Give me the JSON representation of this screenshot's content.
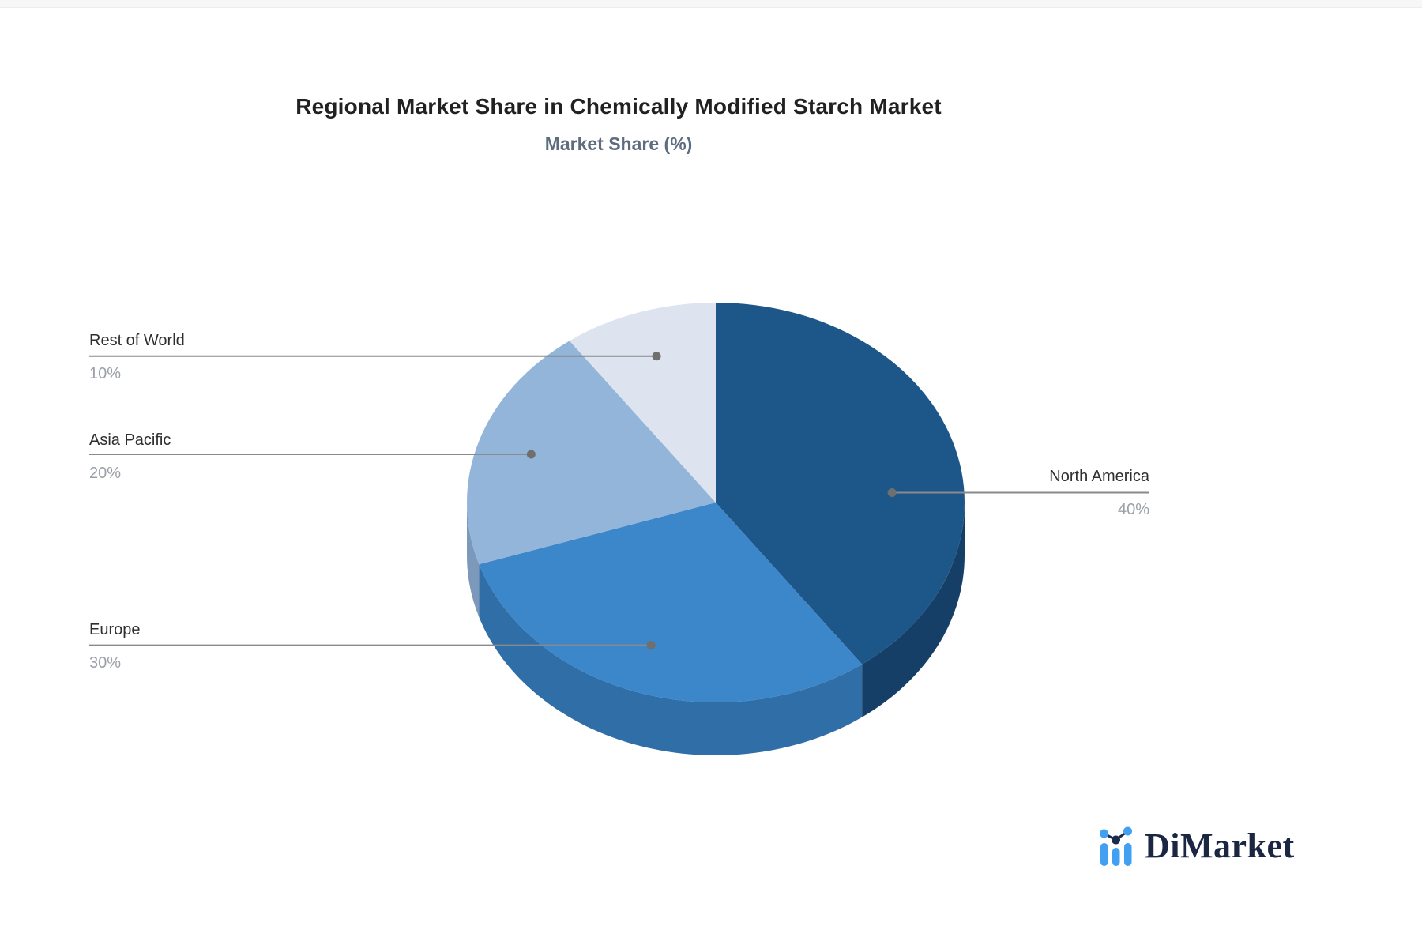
{
  "header": {
    "title": "Regional Market Share in Chemically Modified Starch Market",
    "subtitle": "Market Share (%)"
  },
  "chart_data": {
    "type": "pie",
    "style": "3d-extruded",
    "title": "Regional Market Share in Chemically Modified Starch Market",
    "subtitle": "Market Share (%)",
    "unit": "%",
    "start_angle": "12-o'clock",
    "direction": "clockwise",
    "legend_position": "leader-line callouts",
    "segments": [
      {
        "label": "North America",
        "value": 40,
        "display_value": "40%",
        "color": "#1d5789",
        "rim_color": "#163f68",
        "callout_side": "right"
      },
      {
        "label": "Europe",
        "value": 30,
        "display_value": "30%",
        "color": "#3c86ca",
        "rim_color": "#2f6ea7",
        "callout_side": "left"
      },
      {
        "label": "Asia Pacific",
        "value": 20,
        "display_value": "20%",
        "color": "#93b5da",
        "rim_color": "#7c98ba",
        "callout_side": "left"
      },
      {
        "label": "Rest of World",
        "value": 10,
        "display_value": "10%",
        "color": "#dde4ef",
        "rim_color": "#c2ccdb",
        "callout_side": "left"
      }
    ],
    "callout_line_color": "#8a8a8a",
    "callout_dot_color": "#6f6f6f",
    "label_color": "#2f2f2f",
    "value_color": "#9aa0a6"
  },
  "branding": {
    "logo_text": "DiMarket",
    "logo_icon": "bar-chart-with-trend-dots-icon",
    "logo_text_color": "#1b2742",
    "logo_accent_color": "#42a0f2"
  }
}
